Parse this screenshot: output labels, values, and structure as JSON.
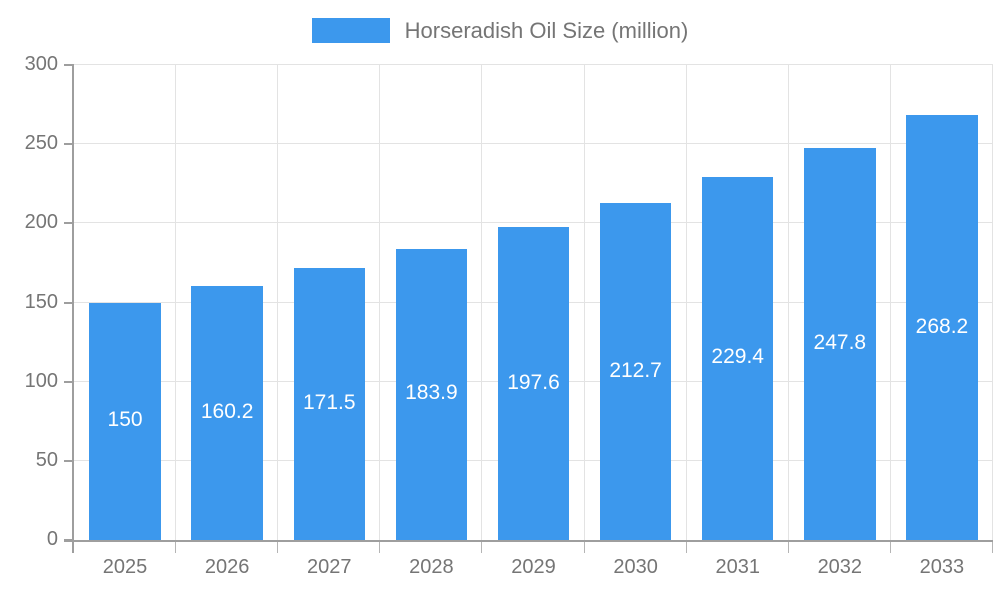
{
  "legend": {
    "label": "Horseradish Oil Size (million)"
  },
  "colors": {
    "bar": "#3C98ED",
    "axis": "#9E9E9E",
    "grid": "#E3E3E3",
    "tick": "#B5B5B5",
    "text": "#757575",
    "bar_label": "#FFFFFF"
  },
  "chart_data": {
    "type": "bar",
    "title": "Horseradish Oil Size (million)",
    "categories": [
      "2025",
      "2026",
      "2027",
      "2028",
      "2029",
      "2030",
      "2031",
      "2032",
      "2033"
    ],
    "values": [
      150,
      160.2,
      171.5,
      183.9,
      197.6,
      212.7,
      229.4,
      247.8,
      268.2
    ],
    "xlabel": "",
    "ylabel": "",
    "ylim": [
      0,
      300
    ],
    "ytick_step": 50,
    "ytick_labels": [
      "0",
      "50",
      "100",
      "150",
      "200",
      "250",
      "300"
    ],
    "grid": true,
    "legend_position": "top",
    "value_labels_inside_bars": true
  }
}
